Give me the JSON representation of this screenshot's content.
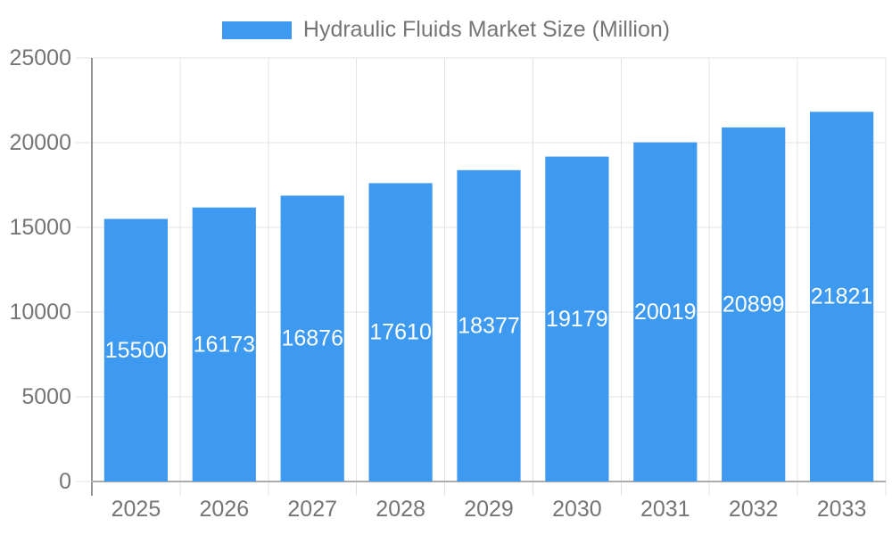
{
  "legend": {
    "swatch": "bar-series-swatch"
  },
  "chart_data": {
    "type": "bar",
    "title": "Hydraulic Fluids Market Size (Million)",
    "categories": [
      "2025",
      "2026",
      "2027",
      "2028",
      "2029",
      "2030",
      "2031",
      "2032",
      "2033"
    ],
    "values": [
      15500,
      16173,
      16876,
      17610,
      18377,
      19179,
      20019,
      20899,
      21821
    ],
    "xlabel": "",
    "ylabel": "",
    "ylim": [
      0,
      25000
    ],
    "yticks": [
      0,
      5000,
      10000,
      15000,
      20000,
      25000
    ],
    "grid": true,
    "legend_position": "top",
    "value_labels": "inside-center"
  },
  "colors": {
    "bar": "#3D9AF0",
    "value_label": "#FFFFFF",
    "grid": "#E3E3E3",
    "tick": "#E0E0E0",
    "y_axis": "#949494",
    "x_axis": "#ABABAB",
    "text": "#757575",
    "background": "#FFFFFF"
  }
}
